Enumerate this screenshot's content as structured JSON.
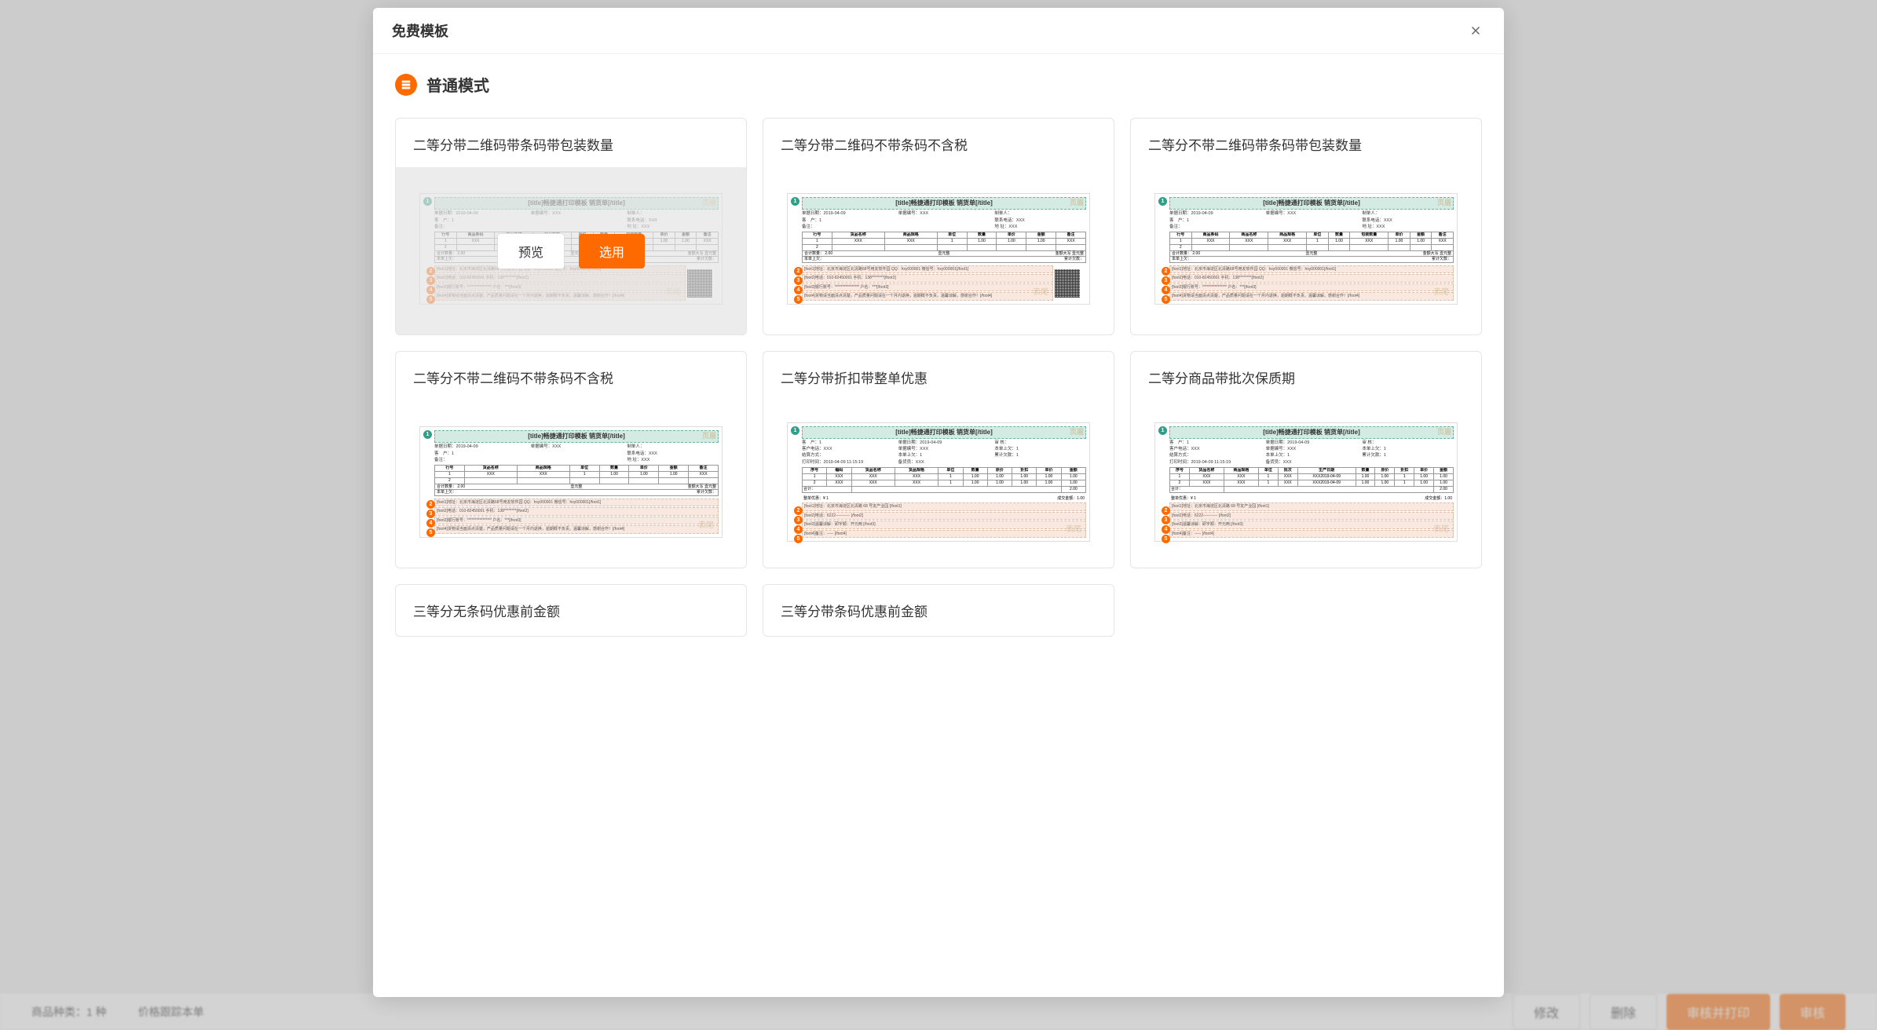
{
  "modal": {
    "title": "免费模板"
  },
  "section": {
    "title": "普通模式"
  },
  "hover_actions": {
    "preview": "预览",
    "apply": "选用"
  },
  "thumb_common": {
    "title_text": "[title]畅捷通打印模板 销货单[/title]",
    "header_watermark": "页眉",
    "footer_watermark": "表尾",
    "meta": {
      "date_label": "单据日期：",
      "date_value": "2019-04-09",
      "docno_label": "单据编号：",
      "docno_value": "XXX",
      "maker_label": "制单人：",
      "customer_label": "客　户：",
      "customer_value": "1",
      "phone_label": "联系电话：",
      "phone_value": "XXX",
      "remark_label": "备注：",
      "addr_label": "地 址：",
      "addr_value": "XXX"
    },
    "foot1": "[foot1]地址：北京市海淀区北清路68号用友软件园 QQ：hxy000001  微信号：hxy000001[/foot1]",
    "foot2": "[foot2]电话：010-82450001         手机：138********[/foot2]",
    "foot3": "[foot3]银行账号：**************** 户名：***[/foot3]",
    "foot4": "[foot4]货物请当面清点清楚，产品质量问题请在一个月内退换，逾期概不负责。温馨谅解，感谢合作！[/foot4]"
  },
  "table_type_a": {
    "headers": [
      "行号",
      "商品条码",
      "商品名称",
      "商品规格",
      "单位",
      "数量",
      "包装数量",
      "单价",
      "金额",
      "备注"
    ],
    "rows": [
      [
        "1",
        "XXX",
        "XXX",
        "XXX",
        "1",
        "1.00",
        "XXX",
        "1.00",
        "1.00",
        "XXX"
      ],
      [
        "2",
        "",
        "",
        "",
        "",
        "",
        "",
        "",
        "",
        ""
      ]
    ],
    "sum_label": "合计数量：",
    "sum_rmb_label": "本单金额：",
    "rmb_text": "壹元整",
    "total_label": "金额大写",
    "total_val": "壹元整",
    "amount_bal": "累计欠款：",
    "last_label": "本单上欠：",
    "box_label": "整件数量",
    "due_label": "本单实付："
  },
  "table_type_b": {
    "headers": [
      "行号",
      "货品名称",
      "商品规格",
      "单位",
      "数量",
      "单价",
      "金额",
      "备注"
    ],
    "rows": [
      [
        "1",
        "XXX",
        "XXX",
        "1",
        "1.00",
        "1.00",
        "1.00",
        "XXX"
      ],
      [
        "2",
        "",
        "",
        "",
        "",
        "",
        "",
        ""
      ]
    ]
  },
  "table_type_c": {
    "headers": [
      "序号",
      "编码",
      "货品名称",
      "货品规格",
      "单位",
      "数量",
      "原价",
      "折扣",
      "单价",
      "金额"
    ],
    "rows": [
      [
        "1",
        "XXX",
        "XXX",
        "XXX",
        "1",
        "1.00",
        "1.00",
        "1.00",
        "1.00",
        "1.00"
      ],
      [
        "2",
        "XXX",
        "XXX",
        "XXX",
        "1",
        "1.00",
        "1.00",
        "1.00",
        "1.00",
        "1.00"
      ]
    ],
    "discount_label": "整单优惠：",
    "discount_val": "¥ 1",
    "deal_label": "成交金额：",
    "deal_val": "1.00",
    "settle_label": "结算方式：",
    "print_time_label": "打印时间：",
    "print_time_value": "2019-04-09 11:15:19",
    "last_label": "本单上欠：",
    "last_value": "1",
    "cum_label": "累计欠款：",
    "cum_value": "1",
    "yrb_label": "审 核："
  },
  "table_type_d": {
    "headers": [
      "序号",
      "货品名称",
      "商品规格",
      "单位",
      "批次",
      "生产日期",
      "数量",
      "原价",
      "折扣",
      "单价",
      "金额"
    ],
    "rows": [
      [
        "1",
        "XXX",
        "XXX",
        "1",
        "XXX",
        "XXX2019-04-09",
        "1.00",
        "1.00",
        "1",
        "1.00",
        "1.00"
      ],
      [
        "2",
        "XXX",
        "XXX",
        "1",
        "XXX",
        "XXX2019-04-09",
        "1.00",
        "1.00",
        "1",
        "1.00",
        "1.00"
      ]
    ]
  },
  "templates": [
    {
      "id": "t1",
      "name": "二等分带二维码带条码带包装数量",
      "type": "a",
      "qr": true,
      "hover": true
    },
    {
      "id": "t2",
      "name": "二等分带二维码不带条码不含税",
      "type": "b",
      "qr": true,
      "hover": false
    },
    {
      "id": "t3",
      "name": "二等分不带二维码带条码带包装数量",
      "type": "a",
      "qr": false,
      "hover": false
    },
    {
      "id": "t4",
      "name": "二等分不带二维码不带条码不含税",
      "type": "b",
      "qr": false,
      "hover": false
    },
    {
      "id": "t5",
      "name": "二等分带折扣带整单优惠",
      "type": "c",
      "qr": false,
      "hover": false
    },
    {
      "id": "t6",
      "name": "二等分商品带批次保质期",
      "type": "d",
      "qr": false,
      "hover": false
    },
    {
      "id": "t7",
      "name": "三等分无条码优惠前金额",
      "type": "none",
      "qr": false,
      "hover": false
    },
    {
      "id": "t8",
      "name": "三等分带条码优惠前金额",
      "type": "none",
      "qr": false,
      "hover": false
    }
  ],
  "bottom": {
    "kinds_label": "商品种类：",
    "kinds_value": "1 种",
    "track_label": "价格跟踪本单",
    "edit": "修改",
    "delete": "删除",
    "print": "审核并打印",
    "audit": "审核"
  },
  "colors": {
    "primary": "#ff6a00",
    "card_border": "#e5e5e5",
    "thumb_title_bg": "#d4ebe3",
    "thumb_foot_bg": "#f9e8e0"
  }
}
